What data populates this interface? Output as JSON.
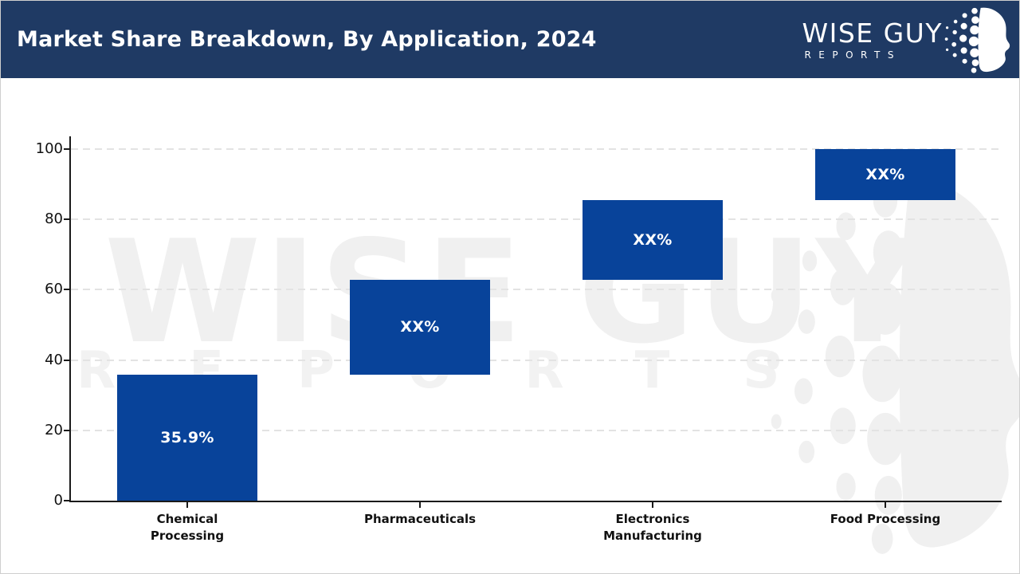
{
  "header": {
    "title": "Market Share Breakdown, By Application, 2024",
    "logo": {
      "line1": "WISE GUY",
      "line2": "REPORTS"
    }
  },
  "watermark": {
    "line1": "WISE GUY",
    "line2": "REPORTS"
  },
  "colors": {
    "header_bg": "#1f3a64",
    "bar": "#08439a",
    "bar_label": "#ffffff",
    "gridline": "#e3e3e3",
    "axis": "#1a1a1a",
    "watermark": "#f0f0f0"
  },
  "chart_data": {
    "type": "bar",
    "subtype": "waterfall",
    "title": "Market Share Breakdown, By Application, 2024",
    "categories": [
      "Chemical Processing",
      "Pharmaceuticals",
      "Electronics Manufacturing",
      "Food Processing"
    ],
    "x_tick_labels": [
      [
        "Chemical",
        "Processing"
      ],
      [
        "Pharmaceuticals"
      ],
      [
        "Electronics",
        "Manufacturing"
      ],
      [
        "Food Processing"
      ]
    ],
    "segments": [
      {
        "category": "Chemical Processing",
        "start": 0,
        "end": 35.9,
        "label": "35.9%"
      },
      {
        "category": "Pharmaceuticals",
        "start": 35.9,
        "end": 62.9,
        "label": "XX%"
      },
      {
        "category": "Electronics Manufacturing",
        "start": 62.9,
        "end": 85.4,
        "label": "XX%"
      },
      {
        "category": "Food Processing",
        "start": 85.4,
        "end": 100,
        "label": "XX%"
      }
    ],
    "yticks": [
      0,
      20,
      40,
      60,
      80,
      100
    ],
    "ylim": [
      0,
      104
    ],
    "xlabel": "",
    "ylabel": "",
    "grid": "horizontal-dashed",
    "legend": "none"
  }
}
